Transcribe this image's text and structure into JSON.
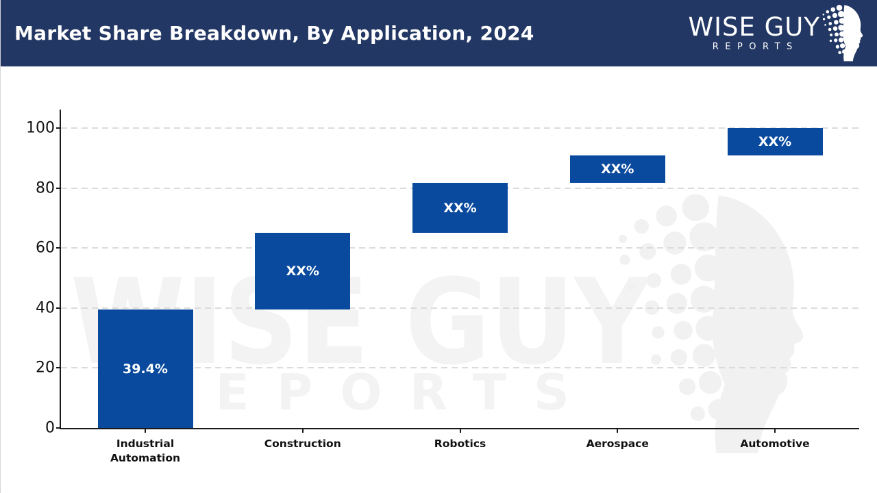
{
  "header": {
    "title": "Market Share Breakdown, By Application, 2024",
    "bg_color": "#223763",
    "logo": {
      "line1": "WISE GUY",
      "line2": "REPORTS"
    }
  },
  "watermark": {
    "line1": "WISE GUY",
    "line2": "REPORTS"
  },
  "chart_data": {
    "type": "bar",
    "subtype": "waterfall",
    "title": "Market Share Breakdown, By Application, 2024",
    "xlabel": "",
    "ylabel": "",
    "categories": [
      "Industrial Automation",
      "Construction",
      "Robotics",
      "Aerospace",
      "Automotive"
    ],
    "segments": [
      {
        "category": "Industrial Automation",
        "start": 0,
        "end": 39.4,
        "label": "39.4%"
      },
      {
        "category": "Construction",
        "start": 39.4,
        "end": 65.0,
        "label": "XX%"
      },
      {
        "category": "Robotics",
        "start": 65.0,
        "end": 81.8,
        "label": "XX%"
      },
      {
        "category": "Aerospace",
        "start": 81.8,
        "end": 90.8,
        "label": "XX%"
      },
      {
        "category": "Automotive",
        "start": 90.8,
        "end": 100.0,
        "label": "XX%"
      }
    ],
    "y_ticks": [
      0,
      20,
      40,
      60,
      80,
      100
    ],
    "ylim": [
      0,
      106
    ],
    "grid": "horizontal dashed",
    "legend": "none",
    "bar_color": "#0a4a9e",
    "bar_label_color": "#ffffff"
  }
}
